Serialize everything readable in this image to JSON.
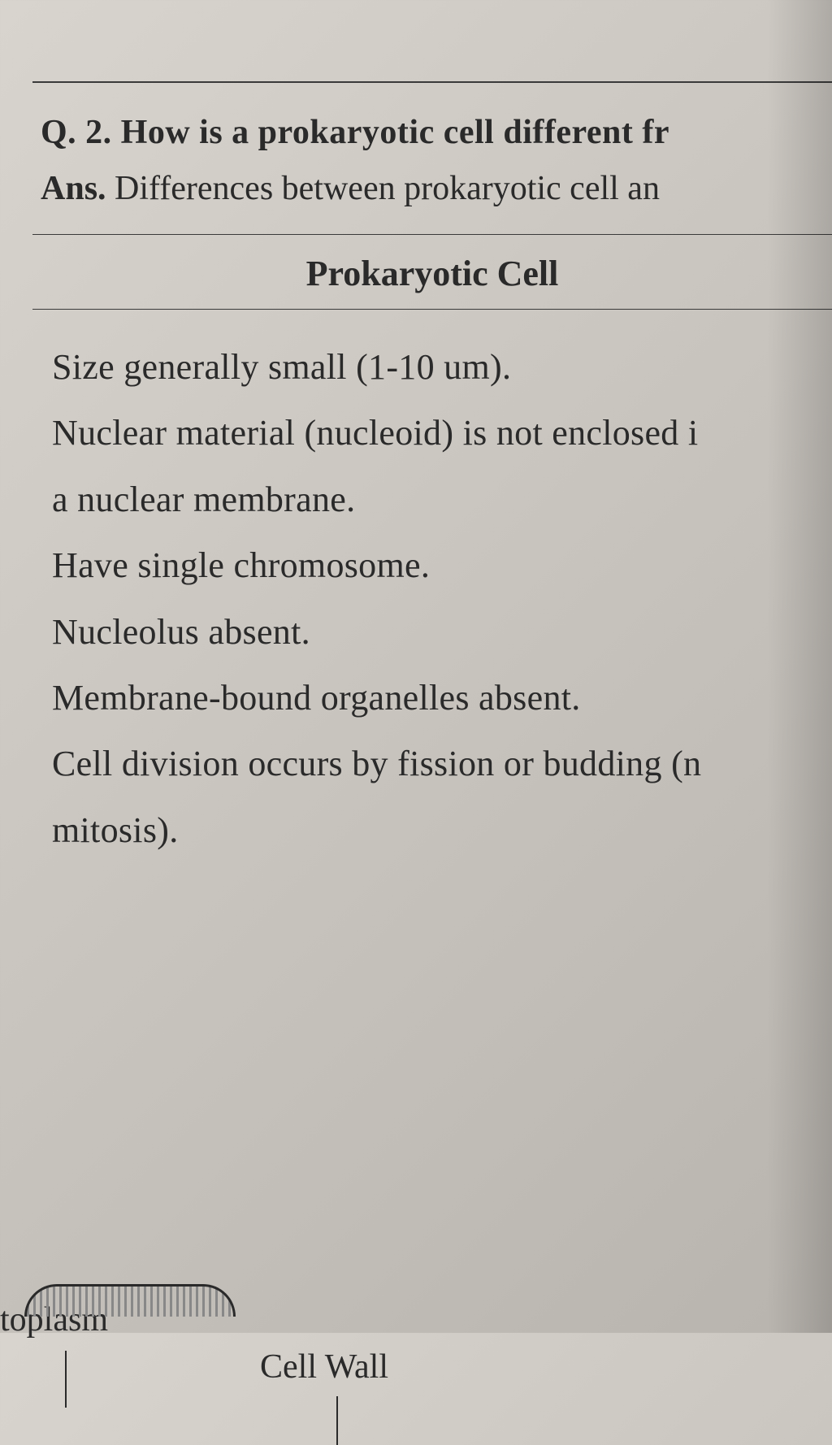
{
  "question": {
    "number": "Q. 2.",
    "text": "How is a prokaryotic cell different fr"
  },
  "answer": {
    "label": "Ans.",
    "text": "Differences between prokaryotic cell an"
  },
  "table": {
    "header": "Prokaryotic Cell",
    "rows": [
      "Size generally small (1-10 um).",
      "Nuclear material (nucleoid) is not enclosed i",
      "a nuclear membrane.",
      "Have single chromosome.",
      "Nucleolus absent.",
      "Membrane-bound organelles absent.",
      "Cell division occurs by fission or budding (n",
      "mitosis)."
    ]
  },
  "diagram": {
    "label_left": "toplasm",
    "label_right": "Cell Wall"
  },
  "style": {
    "background_gradient_start": "#d8d4ce",
    "background_gradient_end": "#b8b4ae",
    "text_color": "#2a2a2a",
    "rule_color": "#3a3a3a",
    "body_fontsize": 44,
    "question_fontsize": 42,
    "header_fontsize": 44,
    "line_height": 1.85
  }
}
